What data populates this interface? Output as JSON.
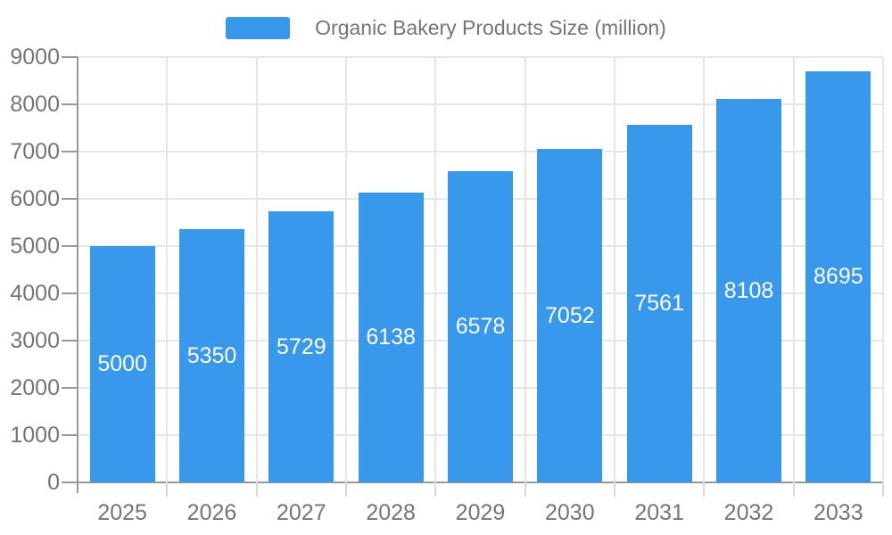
{
  "chart_data": {
    "type": "bar",
    "title": "Organic Bakery Products Size (million)",
    "categories": [
      "2025",
      "2026",
      "2027",
      "2028",
      "2029",
      "2030",
      "2031",
      "2032",
      "2033"
    ],
    "values": [
      5000,
      5350,
      5729,
      6138,
      6578,
      7052,
      7561,
      8108,
      8695
    ],
    "xlabel": "",
    "ylabel": "",
    "ylim": [
      0,
      9000
    ],
    "ytick_step": 1000,
    "grid": true,
    "legend_position": "top-center",
    "value_labels": "inside-center",
    "colors": {
      "bar": "#3899EC",
      "axis": "#999999",
      "grid": "#e6e6e6",
      "minor_tick": "#d9d9d9",
      "tick_text": "#757575",
      "value_label": "#ffffff",
      "background": "#ffffff"
    }
  }
}
